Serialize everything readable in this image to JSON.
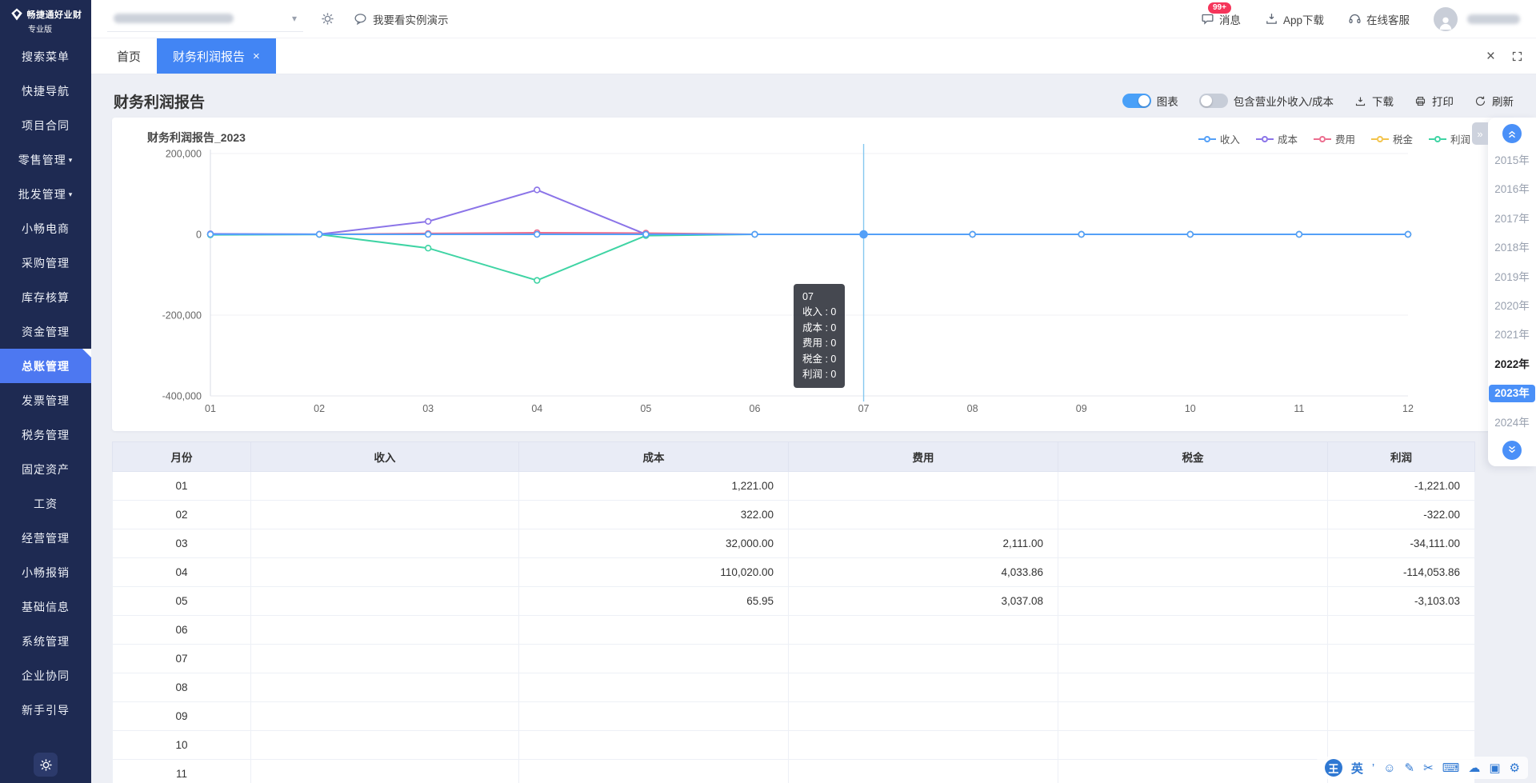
{
  "icons": {
    "chevron_down": "▾",
    "close": "×",
    "collapse_right": "»"
  },
  "sidebar": {
    "logo_line1": "畅捷通好业财",
    "logo_line2": "专业版",
    "items": [
      {
        "label": "搜索菜单",
        "active": false,
        "arrow": false
      },
      {
        "label": "快捷导航",
        "active": false,
        "arrow": false
      },
      {
        "label": "项目合同",
        "active": false,
        "arrow": false
      },
      {
        "label": "零售管理",
        "active": false,
        "arrow": true
      },
      {
        "label": "批发管理",
        "active": false,
        "arrow": true
      },
      {
        "label": "小畅电商",
        "active": false,
        "arrow": false
      },
      {
        "label": "采购管理",
        "active": false,
        "arrow": false
      },
      {
        "label": "库存核算",
        "active": false,
        "arrow": false
      },
      {
        "label": "资金管理",
        "active": false,
        "arrow": false
      },
      {
        "label": "总账管理",
        "active": true,
        "arrow": false
      },
      {
        "label": "发票管理",
        "active": false,
        "arrow": false
      },
      {
        "label": "税务管理",
        "active": false,
        "arrow": false
      },
      {
        "label": "固定资产",
        "active": false,
        "arrow": false
      },
      {
        "label": "工资",
        "active": false,
        "arrow": false
      },
      {
        "label": "经营管理",
        "active": false,
        "arrow": false
      },
      {
        "label": "小畅报销",
        "active": false,
        "arrow": false
      },
      {
        "label": "基础信息",
        "active": false,
        "arrow": false
      },
      {
        "label": "系统管理",
        "active": false,
        "arrow": false
      },
      {
        "label": "企业协同",
        "active": false,
        "arrow": false
      },
      {
        "label": "新手引导",
        "active": false,
        "arrow": false
      }
    ]
  },
  "topbar": {
    "demo_label": "我要看实例演示",
    "messages_label": "消息",
    "messages_badge": "99+",
    "app_download_label": "App下载",
    "support_label": "在线客服"
  },
  "tabs": {
    "items": [
      {
        "label": "首页",
        "active": false,
        "closable": false
      },
      {
        "label": "财务利润报告",
        "active": true,
        "closable": true
      }
    ]
  },
  "page": {
    "title": "财务利润报告",
    "chart_toggle_label": "图表",
    "chart_toggle_on": true,
    "nonop_toggle_label": "包含营业外收入/成本",
    "nonop_toggle_on": false,
    "download_label": "下载",
    "print_label": "打印",
    "refresh_label": "刷新"
  },
  "chart_data": {
    "type": "line",
    "title": "财务利润报告_2023",
    "x": [
      "01",
      "02",
      "03",
      "04",
      "05",
      "06",
      "07",
      "08",
      "09",
      "10",
      "11",
      "12"
    ],
    "ylim": [
      -400000,
      200000
    ],
    "yticks": [
      200000,
      0,
      -200000,
      -400000
    ],
    "ytick_labels": [
      "200,000",
      "0",
      "-200,000",
      "-400,000"
    ],
    "grid": true,
    "legend_position": "top-right",
    "series": [
      {
        "name": "收入",
        "color": "#54a0f8",
        "values": [
          0,
          0,
          0,
          0,
          0,
          0,
          0,
          0,
          0,
          0,
          0,
          0
        ]
      },
      {
        "name": "成本",
        "color": "#8b74e8",
        "values": [
          1221,
          322,
          32000,
          110020,
          65.95,
          0,
          0,
          0,
          0,
          0,
          0,
          0
        ]
      },
      {
        "name": "费用",
        "color": "#ec6e8f",
        "values": [
          0,
          0,
          2111,
          4033.86,
          3037.08,
          0,
          0,
          0,
          0,
          0,
          0,
          0
        ]
      },
      {
        "name": "税金",
        "color": "#f3c44c",
        "values": [
          0,
          0,
          0,
          0,
          0,
          0,
          0,
          0,
          0,
          0,
          0,
          0
        ]
      },
      {
        "name": "利润",
        "color": "#3fd4a4",
        "values": [
          -1221,
          -322,
          -34111,
          -114053.86,
          -3103.03,
          0,
          0,
          0,
          0,
          0,
          0,
          0
        ]
      }
    ],
    "tooltip": {
      "x_index": 6,
      "title": "07",
      "rows": [
        {
          "name": "收入",
          "value": "0"
        },
        {
          "name": "成本",
          "value": "0"
        },
        {
          "name": "费用",
          "value": "0"
        },
        {
          "name": "税金",
          "value": "0"
        },
        {
          "name": "利润",
          "value": "0"
        }
      ]
    }
  },
  "table": {
    "columns": [
      "月份",
      "收入",
      "成本",
      "费用",
      "税金",
      "利润"
    ],
    "rows": [
      [
        "01",
        "",
        "1,221.00",
        "",
        "",
        "-1,221.00"
      ],
      [
        "02",
        "",
        "322.00",
        "",
        "",
        "-322.00"
      ],
      [
        "03",
        "",
        "32,000.00",
        "2,111.00",
        "",
        "-34,111.00"
      ],
      [
        "04",
        "",
        "110,020.00",
        "4,033.86",
        "",
        "-114,053.86"
      ],
      [
        "05",
        "",
        "65.95",
        "3,037.08",
        "",
        "-3,103.03"
      ],
      [
        "06",
        "",
        "",
        "",
        "",
        ""
      ],
      [
        "07",
        "",
        "",
        "",
        "",
        ""
      ],
      [
        "08",
        "",
        "",
        "",
        "",
        ""
      ],
      [
        "09",
        "",
        "",
        "",
        "",
        ""
      ],
      [
        "10",
        "",
        "",
        "",
        "",
        ""
      ],
      [
        "11",
        "",
        "",
        "",
        "",
        ""
      ]
    ]
  },
  "year_panel": {
    "years": [
      "2015年",
      "2016年",
      "2017年",
      "2018年",
      "2019年",
      "2020年",
      "2021年",
      "2022年",
      "2023年",
      "2024年"
    ],
    "active": "2023年",
    "current": "2022年"
  },
  "ime_bar": {
    "mode_main": "王",
    "mode_lang": "英",
    "icons": [
      {
        "name": "punctuation-icon",
        "glyph": "’"
      },
      {
        "name": "emoji-icon",
        "glyph": "☺"
      },
      {
        "name": "pen-icon",
        "glyph": "✎"
      },
      {
        "name": "scissors-icon",
        "glyph": "✂"
      },
      {
        "name": "keyboard-icon",
        "glyph": "⌨"
      },
      {
        "name": "cloud-icon",
        "glyph": "☁"
      },
      {
        "name": "toolbox-icon",
        "glyph": "▣"
      },
      {
        "name": "settings-icon",
        "glyph": "⚙"
      }
    ]
  },
  "colors": {
    "accent": "#4285f4",
    "sidebar_bg": "#1e2a52",
    "sidebar_active": "#4d78f1",
    "badge_red": "#f5355a",
    "toggle_on": "#49a0f8",
    "table_header_bg": "#e9ecf6",
    "crosshair": "#86c8f0"
  }
}
